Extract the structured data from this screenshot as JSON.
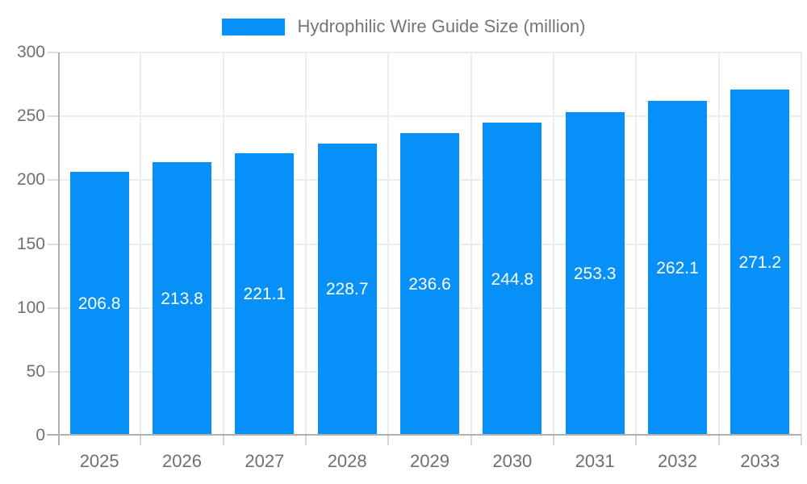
{
  "legend": {
    "label": "Hydrophilic Wire Guide Size (million)",
    "swatch_color": "#0690f8"
  },
  "colors": {
    "bar": "#0690f8",
    "grid": "#ececec",
    "axis": "#b0b0b0",
    "tick": "#d6d6d6",
    "axis_text": "#6f6f6f",
    "legend_text": "#757575",
    "value_text": "#ffffff",
    "background": "#ffffff"
  },
  "chart_data": {
    "type": "bar",
    "title": "Hydrophilic Wire Guide Size (million)",
    "categories": [
      "2025",
      "2026",
      "2027",
      "2028",
      "2029",
      "2030",
      "2031",
      "2032",
      "2033"
    ],
    "values": [
      206.8,
      213.8,
      221.1,
      228.7,
      236.6,
      244.8,
      253.3,
      262.1,
      271.2
    ],
    "value_labels_shown": true,
    "value_label_position": "center-of-bar",
    "xlabel": "",
    "ylabel": "",
    "ylim": [
      0,
      300
    ],
    "yticks": [
      0,
      50,
      100,
      150,
      200,
      250,
      300
    ],
    "grid": true,
    "legend_position": "top-center"
  }
}
